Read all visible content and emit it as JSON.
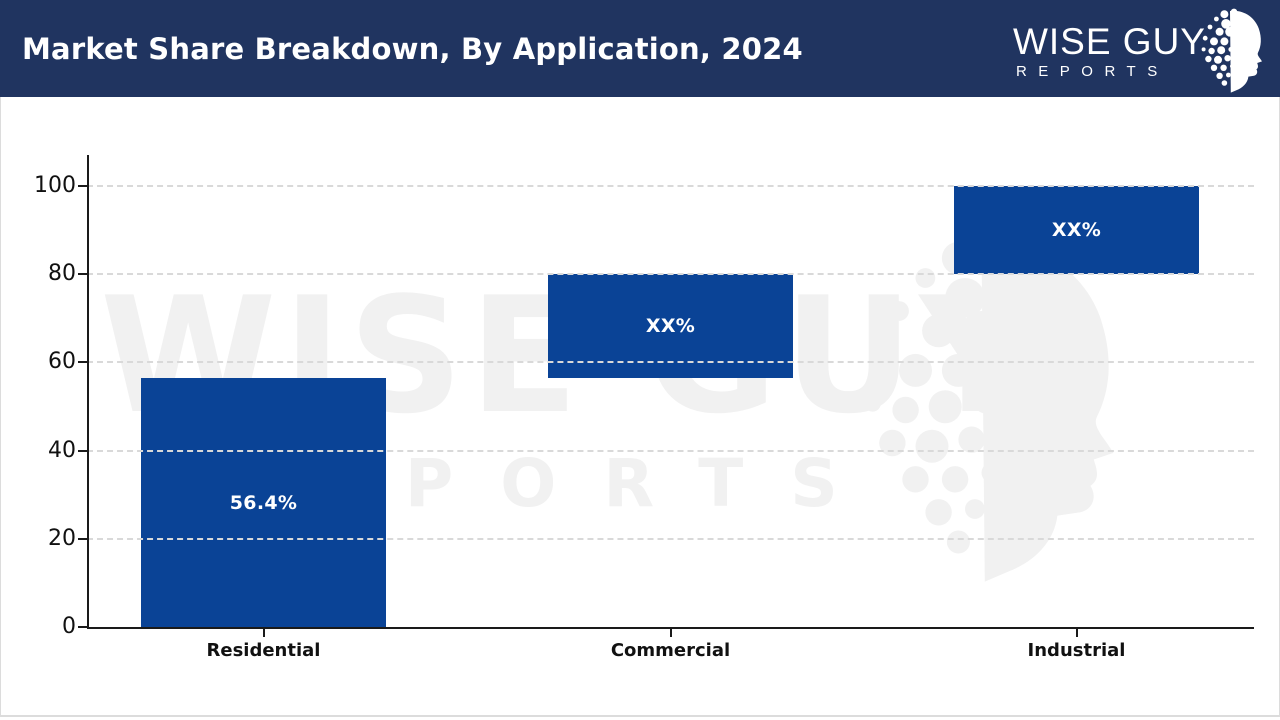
{
  "header": {
    "title": "Market Share Breakdown, By Application, 2024",
    "bg_color": "#203460",
    "logo": {
      "line1": "WISE GUY",
      "line2": "REPORTS"
    }
  },
  "watermark": {
    "line1": "WISE GUY",
    "line2": "REPORTS"
  },
  "chart_data": {
    "type": "bar",
    "subtype": "stacked-waterfall-percent",
    "title": "Market Share Breakdown, By Application, 2024",
    "categories": [
      "Residential",
      "Commercial",
      "Industrial"
    ],
    "segments": [
      {
        "category": "Residential",
        "start": 0,
        "end": 56.4,
        "label": "56.4%"
      },
      {
        "category": "Commercial",
        "start": 56.4,
        "end": 80,
        "label": "XX%"
      },
      {
        "category": "Industrial",
        "start": 80,
        "end": 100,
        "label": "XX%"
      }
    ],
    "xlabel": "",
    "ylabel": "",
    "ylim": [
      0,
      100
    ],
    "yticks": [
      0,
      20,
      40,
      60,
      80,
      100
    ],
    "grid": {
      "horizontal": true,
      "style": "dashed",
      "drawn_over_bars": true,
      "color": "#d9d9d9"
    },
    "bar_color": "#0A4396",
    "bar_label_color": "#ffffff",
    "legend": "none"
  }
}
